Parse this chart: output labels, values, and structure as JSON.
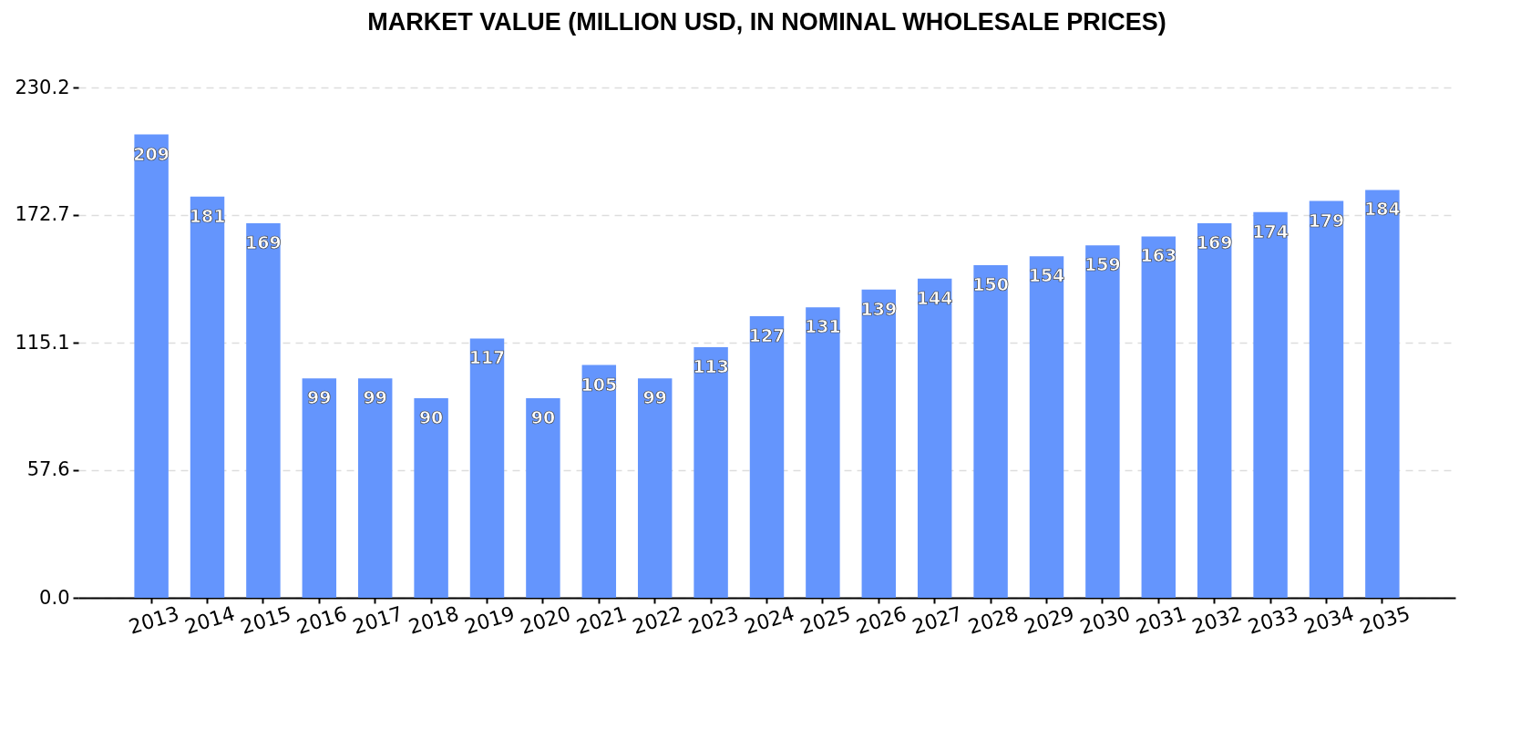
{
  "chart_data": {
    "type": "bar",
    "title": "MARKET VALUE (MILLION USD, IN NOMINAL WHOLESALE PRICES)",
    "categories": [
      "2013",
      "2014",
      "2015",
      "2016",
      "2017",
      "2018",
      "2019",
      "2020",
      "2021",
      "2022",
      "2023",
      "2024",
      "2025",
      "2026",
      "2027",
      "2028",
      "2029",
      "2030",
      "2031",
      "2032",
      "2033",
      "2034",
      "2035"
    ],
    "values": [
      209,
      181,
      169,
      99,
      99,
      90,
      117,
      90,
      105,
      99,
      113,
      127,
      131,
      139,
      144,
      150,
      154,
      159,
      163,
      169,
      174,
      179,
      184
    ],
    "color": "#6495fd",
    "ylim": [
      0,
      230.2
    ],
    "yticks": [
      {
        "value": 0,
        "label": "0.0"
      },
      57.6,
      115.1,
      172.7,
      230.2
    ],
    "grid": "y",
    "data_labels": true
  }
}
